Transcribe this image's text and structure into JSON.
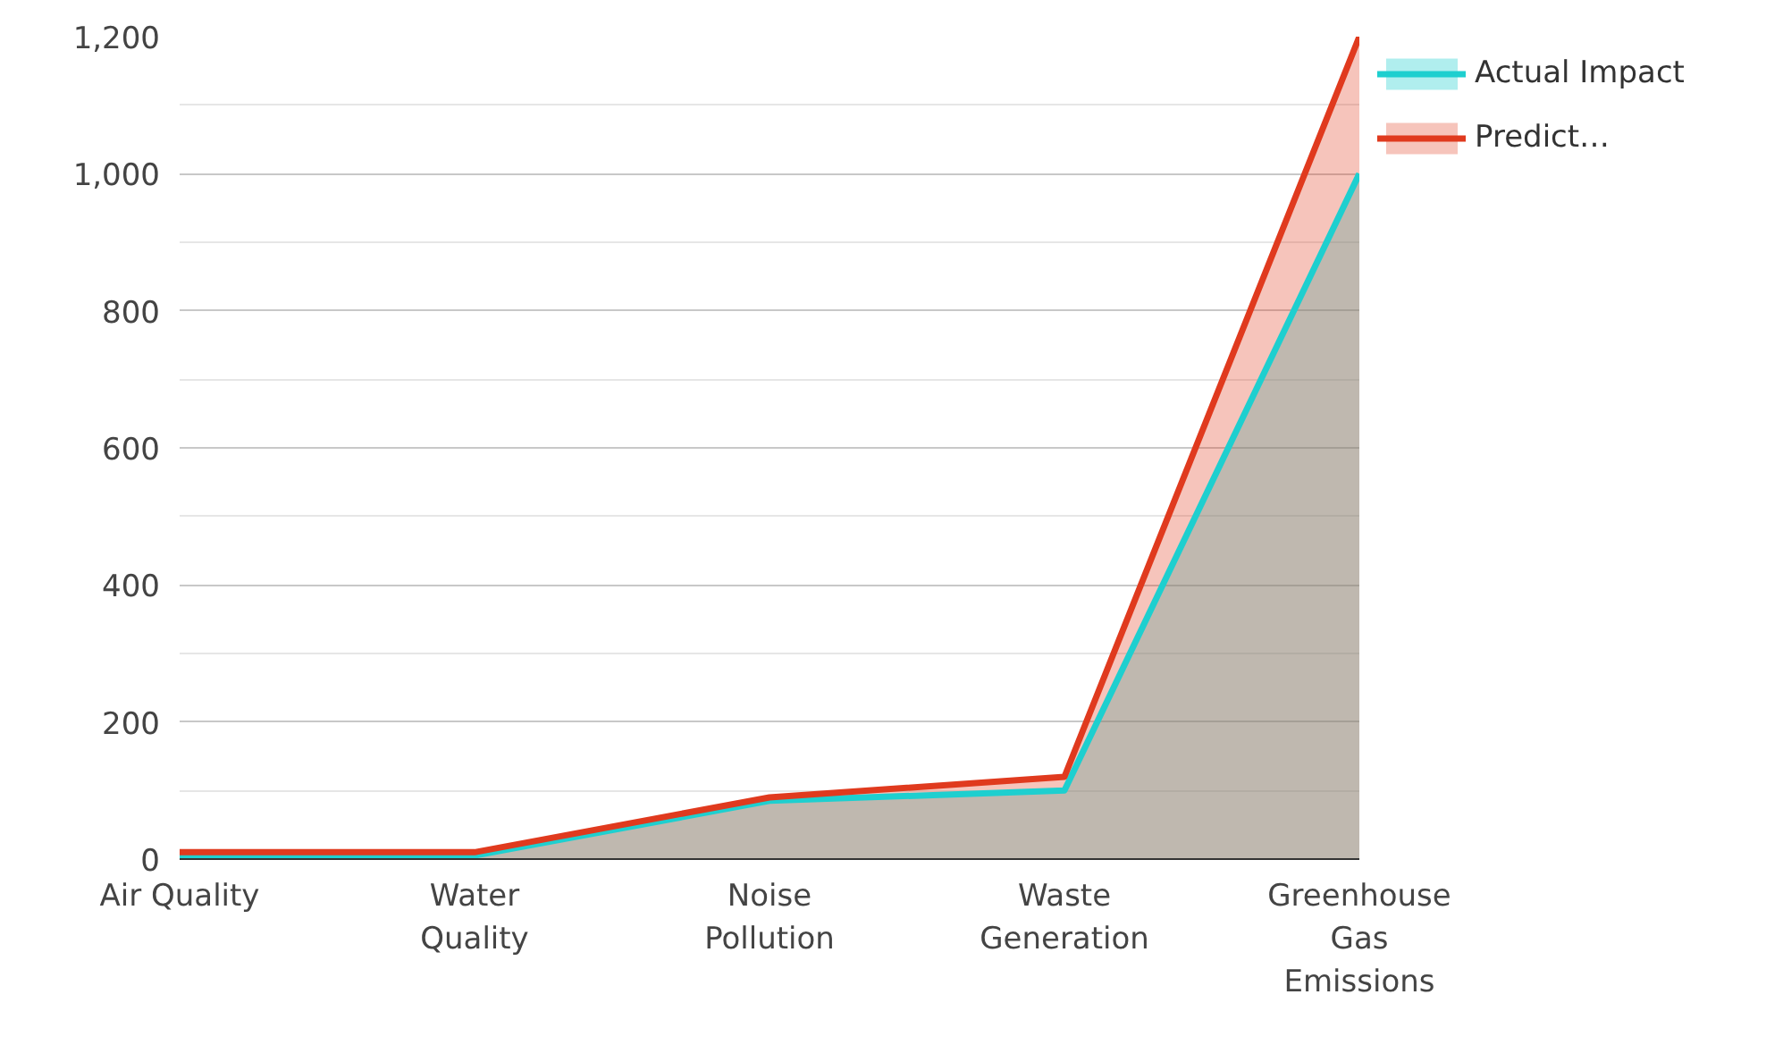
{
  "chart_data": {
    "type": "area",
    "categories": [
      "Air Quality",
      "Water Quality",
      "Noise Pollution",
      "Waste Generation",
      "Greenhouse Gas Emissions"
    ],
    "series": [
      {
        "name": "Actual Impact",
        "color": "#1ecfcf",
        "values": [
          5,
          5,
          85,
          100,
          1000
        ]
      },
      {
        "name": "Predict…",
        "color": "#e03a1e",
        "values": [
          10,
          10,
          90,
          120,
          1200
        ]
      }
    ],
    "ylim": [
      0,
      1200
    ],
    "yticks": [
      {
        "value": 0,
        "label": "0"
      },
      {
        "value": 200,
        "label": "200"
      },
      {
        "value": 400,
        "label": "400"
      },
      {
        "value": 600,
        "label": "600"
      },
      {
        "value": 800,
        "label": "800"
      },
      {
        "value": 1000,
        "label": "1,000"
      },
      {
        "value": 1200,
        "label": "1,200"
      }
    ],
    "grid": "y",
    "legend": "top right"
  }
}
